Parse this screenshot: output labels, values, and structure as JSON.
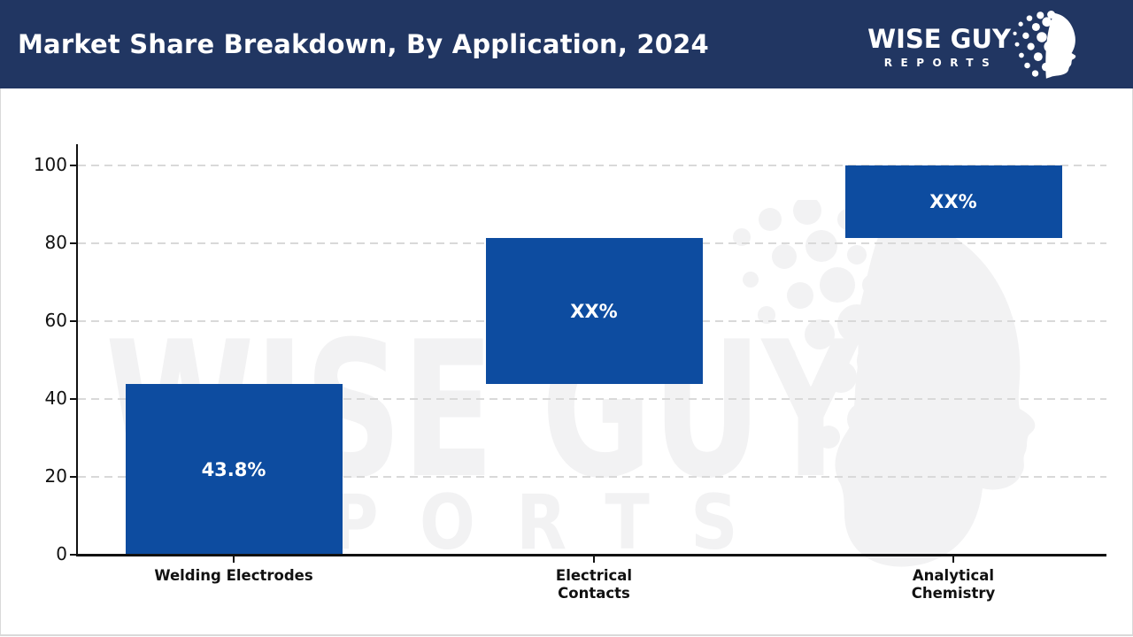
{
  "header": {
    "title": "Market Share Breakdown, By Application, 2024",
    "logo": {
      "name": "WISE GUY",
      "sub": "REPORTS"
    }
  },
  "watermark": {
    "line1": "WISE GUY",
    "line2": "REPORTS"
  },
  "colors": {
    "header_bg": "#213662",
    "bar": "#0d4ca0",
    "grid": "#d9d9d9",
    "axis": "#111111",
    "watermark": "#f2f2f3",
    "card_border": "#d9d9d9",
    "title_text": "#ffffff",
    "bar_label": "#ffffff",
    "tick_label": "#111111"
  },
  "chart_data": {
    "type": "bar",
    "subtype": "waterfall",
    "title": "Market Share Breakdown, By Application, 2024",
    "categories": [
      "Welding Electrodes",
      "Electrical Contacts",
      "Analytical Chemistry"
    ],
    "category_lines": [
      [
        "Welding Electrodes"
      ],
      [
        "Electrical",
        "Contacts"
      ],
      [
        "Analytical",
        "Chemistry"
      ]
    ],
    "segments": [
      {
        "category": "Welding Electrodes",
        "start": 0,
        "end": 43.8,
        "label": "43.8%"
      },
      {
        "category": "Electrical Contacts",
        "start": 43.8,
        "end": 81.3,
        "label": "XX%"
      },
      {
        "category": "Analytical Chemistry",
        "start": 81.3,
        "end": 100,
        "label": "XX%"
      }
    ],
    "yticks": [
      0,
      20,
      40,
      60,
      80,
      100
    ],
    "ylim": [
      0,
      100
    ],
    "xlabel": "",
    "ylabel": "",
    "grid": "dashed-horizontal",
    "legend": "none",
    "bar_color": "#0d4ca0"
  }
}
